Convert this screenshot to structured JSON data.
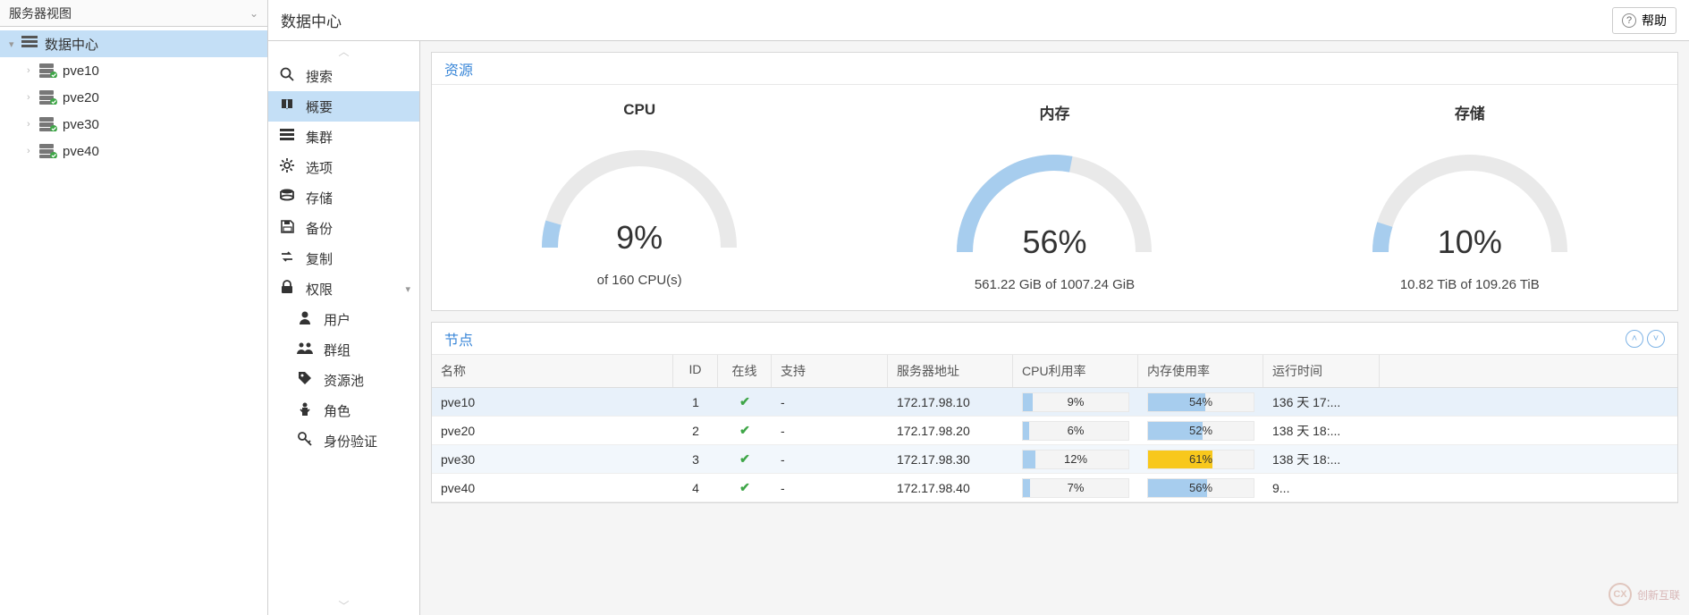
{
  "tree": {
    "header": "服务器视图",
    "root": "数据中心",
    "nodes": [
      {
        "name": "pve10"
      },
      {
        "name": "pve20"
      },
      {
        "name": "pve30"
      },
      {
        "name": "pve40"
      }
    ]
  },
  "content": {
    "title": "数据中心",
    "help_label": "帮助"
  },
  "nav": {
    "items": [
      {
        "icon": "search",
        "label": "搜索",
        "selected": false
      },
      {
        "icon": "book",
        "label": "概要",
        "selected": true
      },
      {
        "icon": "cluster",
        "label": "集群",
        "selected": false
      },
      {
        "icon": "gear",
        "label": "选项",
        "selected": false
      },
      {
        "icon": "storage",
        "label": "存储",
        "selected": false
      },
      {
        "icon": "save",
        "label": "备份",
        "selected": false
      },
      {
        "icon": "replicate",
        "label": "复制",
        "selected": false
      },
      {
        "icon": "lock",
        "label": "权限",
        "selected": false,
        "expandable": true
      }
    ],
    "sub_items": [
      {
        "icon": "user",
        "label": "用户"
      },
      {
        "icon": "group",
        "label": "群组"
      },
      {
        "icon": "tag",
        "label": "资源池"
      },
      {
        "icon": "role",
        "label": "角色"
      },
      {
        "icon": "key",
        "label": "身份验证"
      }
    ]
  },
  "resources": {
    "panel_title": "资源",
    "gauges": [
      {
        "title": "CPU",
        "percent": 9,
        "value_text": "9%",
        "sub": "of 160 CPU(s)"
      },
      {
        "title": "内存",
        "percent": 56,
        "value_text": "56%",
        "sub": "561.22 GiB of 1007.24 GiB"
      },
      {
        "title": "存储",
        "percent": 10,
        "value_text": "10%",
        "sub": "10.82 TiB of 109.26 TiB"
      }
    ],
    "gauge_track_color": "#e9e9e9",
    "gauge_fill_color": "#a7cdee"
  },
  "nodes": {
    "panel_title": "节点",
    "columns": {
      "name": "名称",
      "id": "ID",
      "online": "在线",
      "support": "支持",
      "addr": "服务器地址",
      "cpu": "CPU利用率",
      "mem": "内存使用率",
      "uptime": "运行时间"
    },
    "rows": [
      {
        "name": "pve10",
        "id": "1",
        "online": true,
        "support": "-",
        "addr": "172.17.98.10",
        "cpu": 9,
        "mem": 54,
        "mem_color": "#a7cdee",
        "uptime": "136 天 17:..."
      },
      {
        "name": "pve20",
        "id": "2",
        "online": true,
        "support": "-",
        "addr": "172.17.98.20",
        "cpu": 6,
        "mem": 52,
        "mem_color": "#a7cdee",
        "uptime": "138 天 18:..."
      },
      {
        "name": "pve30",
        "id": "3",
        "online": true,
        "support": "-",
        "addr": "172.17.98.30",
        "cpu": 12,
        "mem": 61,
        "mem_color": "#f8c81c",
        "uptime": "138 天 18:..."
      },
      {
        "name": "pve40",
        "id": "4",
        "online": true,
        "support": "-",
        "addr": "172.17.98.40",
        "cpu": 7,
        "mem": 56,
        "mem_color": "#a7cdee",
        "uptime": "9..."
      }
    ],
    "cpu_bar_color": "#a7cdee"
  },
  "watermark": {
    "logo": "CX",
    "text": "创新互联"
  }
}
